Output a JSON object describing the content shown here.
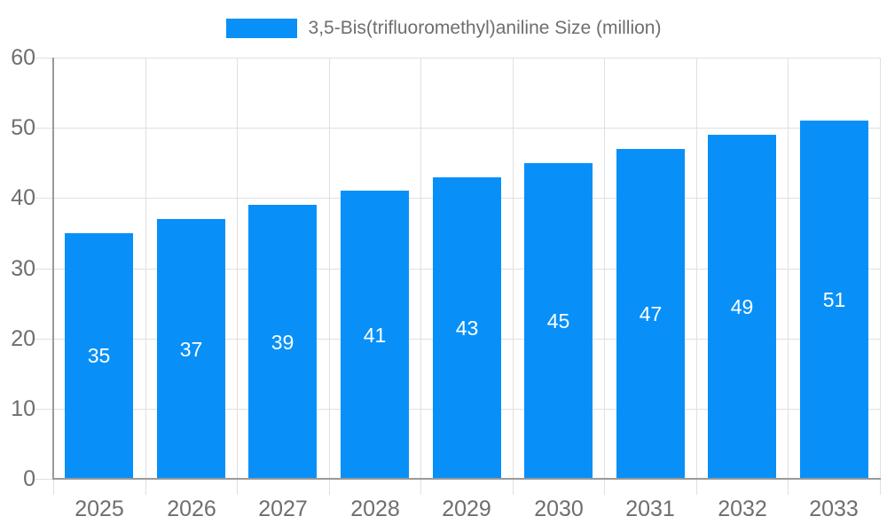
{
  "chart_data": {
    "type": "bar",
    "title": "",
    "categories": [
      "2025",
      "2026",
      "2027",
      "2028",
      "2029",
      "2030",
      "2031",
      "2032",
      "2033"
    ],
    "series": [
      {
        "name": "3,5-Bis(trifluoromethyl)aniline Size (million)",
        "values": [
          35,
          37,
          39,
          41,
          43,
          45,
          47,
          49,
          51
        ]
      }
    ],
    "xlabel": "",
    "ylabel": "",
    "ylim": [
      0,
      60
    ],
    "yticks": [
      0,
      10,
      20,
      30,
      40,
      50,
      60
    ],
    "grid": true,
    "legend_position": "top",
    "value_labels": "inside-center"
  },
  "colors": {
    "bar": "#0890f8",
    "grid": "#e0e0e0",
    "axis": "#999999",
    "text": "#6e6e6e",
    "value_label": "#ffffff",
    "background": "#ffffff"
  }
}
